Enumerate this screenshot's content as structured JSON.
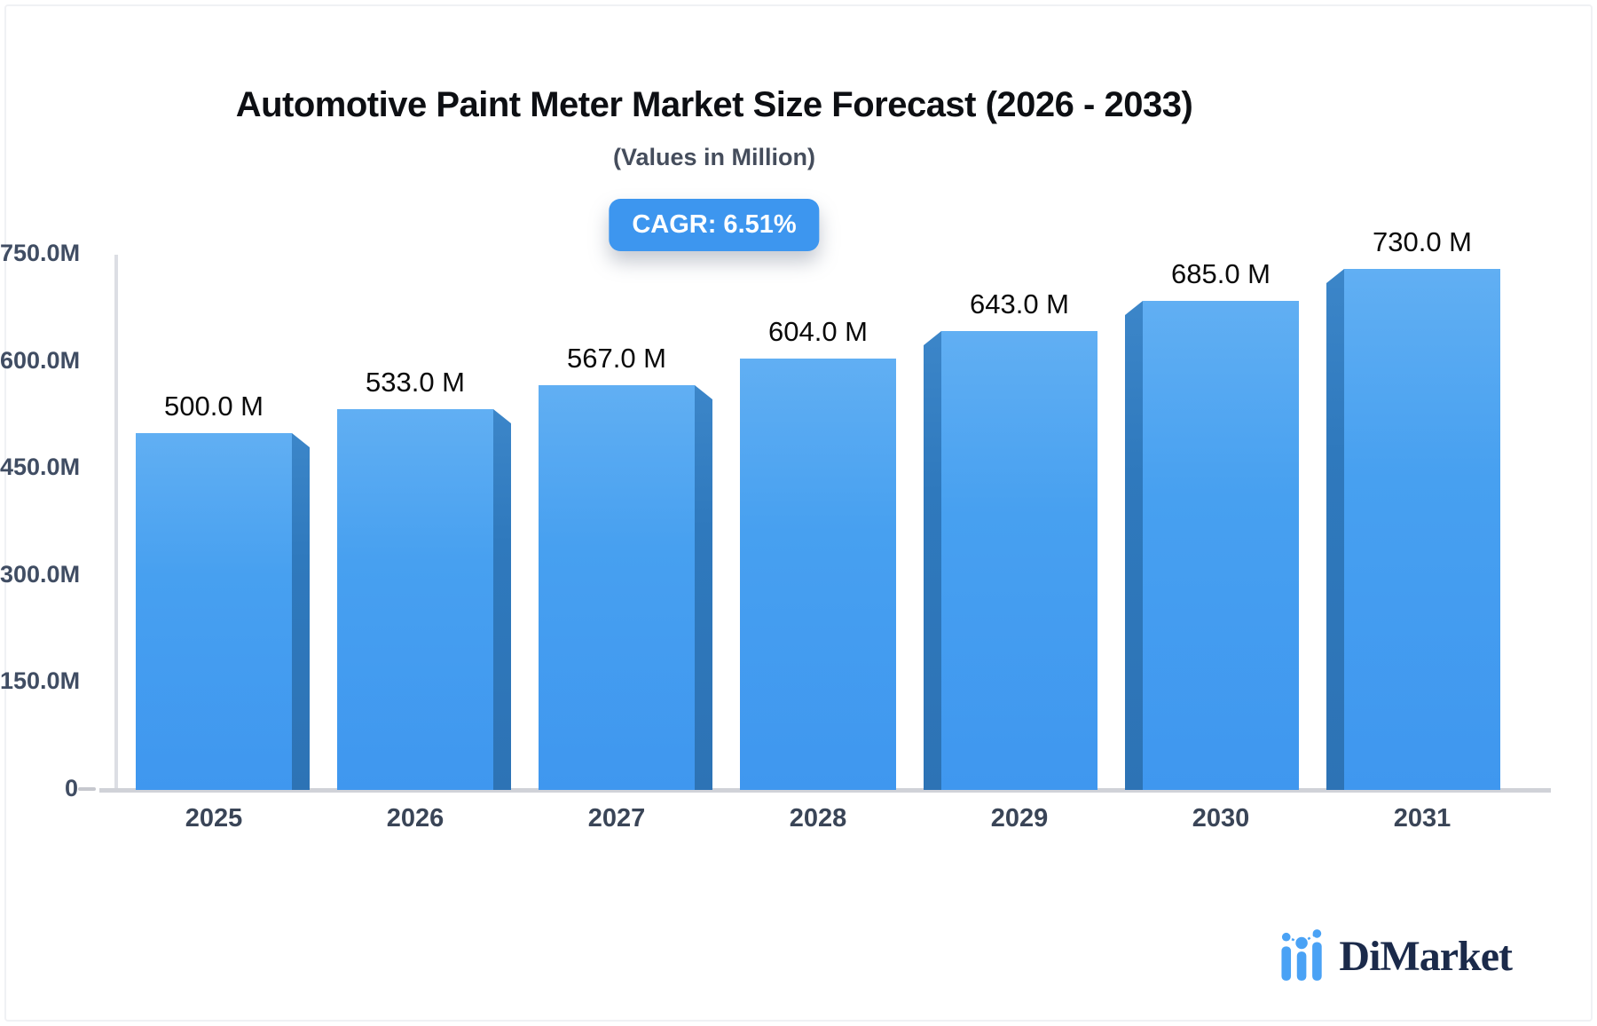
{
  "title": "Automotive Paint Meter Market Size Forecast (2026 - 2033)",
  "subtitle": "(Values in Million)",
  "badge": {
    "label": "CAGR: 6.51%",
    "bg_color": "#3d96ef",
    "text_color": "#ffffff"
  },
  "brand": {
    "name": "DiMarket",
    "text_color": "#1b2a4a",
    "icon_color": "#4aa2f5",
    "icon": "bar-chart-logo-icon"
  },
  "colors": {
    "bar_front_top": "#61aff3",
    "bar_front_bottom": "#3f97ef",
    "bar_side_face": "#2f79bd",
    "axis_line": "#dcdee4",
    "baseline": "#d0d2d8",
    "tick_text": "#404d63",
    "value_text": "#0a0a0a",
    "year_text": "#3a4557"
  },
  "chart_data": {
    "type": "bar",
    "categories": [
      "2025",
      "2026",
      "2027",
      "2028",
      "2029",
      "2030",
      "2031"
    ],
    "values": [
      500,
      533,
      567,
      604,
      643,
      685,
      730
    ],
    "bar_labels": [
      "500.0 M",
      "533.0 M",
      "567.0 M",
      "604.0 M",
      "643.0 M",
      "685.0 M",
      "730.0 M"
    ],
    "series_unit": "Million",
    "y_ticks": [
      {
        "label": "750.0M",
        "value": 750
      },
      {
        "label": "600.0M",
        "value": 600
      },
      {
        "label": "450.0M",
        "value": 450
      },
      {
        "label": "300.0M",
        "value": 300
      },
      {
        "label": "150.0M",
        "value": 150
      },
      {
        "label": "0",
        "value": 0
      }
    ],
    "ylim": [
      0,
      750
    ],
    "xlabel": "",
    "ylabel": "",
    "grid": false,
    "legend": null,
    "style": "3d-bars-central-perspective"
  }
}
